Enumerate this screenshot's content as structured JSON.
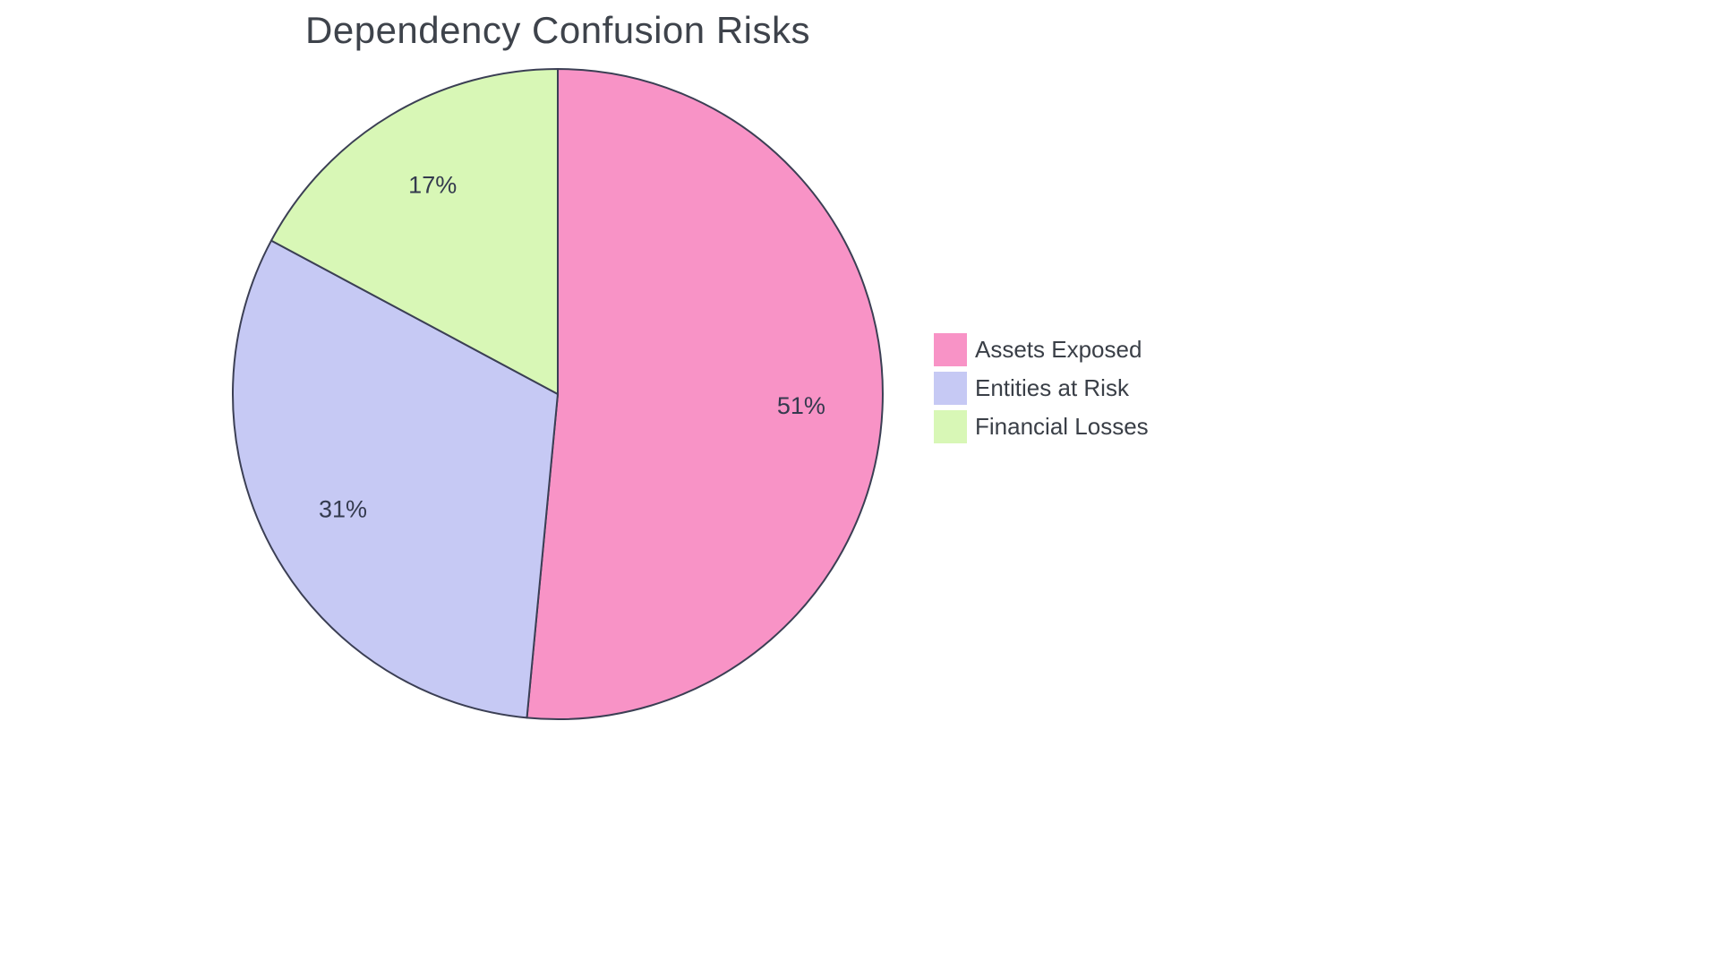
{
  "page": {
    "background_color": "#FFFFFF"
  },
  "chart_data": {
    "type": "pie",
    "title": "Dependency Confusion Risks",
    "slices": [
      {
        "label": "Assets Exposed",
        "value": 51,
        "display": "51%",
        "color": "#F893C6"
      },
      {
        "label": "Entities at Risk",
        "value": 31,
        "display": "31%",
        "color": "#C6C9F4"
      },
      {
        "label": "Financial Losses",
        "value": 17,
        "display": "17%",
        "color": "#D8F7B6"
      }
    ],
    "start_angle_deg": 0,
    "direction": "clockwise",
    "legend_position": "right",
    "stroke_color": "#3B3F54",
    "label_color": "#343A4E",
    "title_color": "#3E434B"
  }
}
